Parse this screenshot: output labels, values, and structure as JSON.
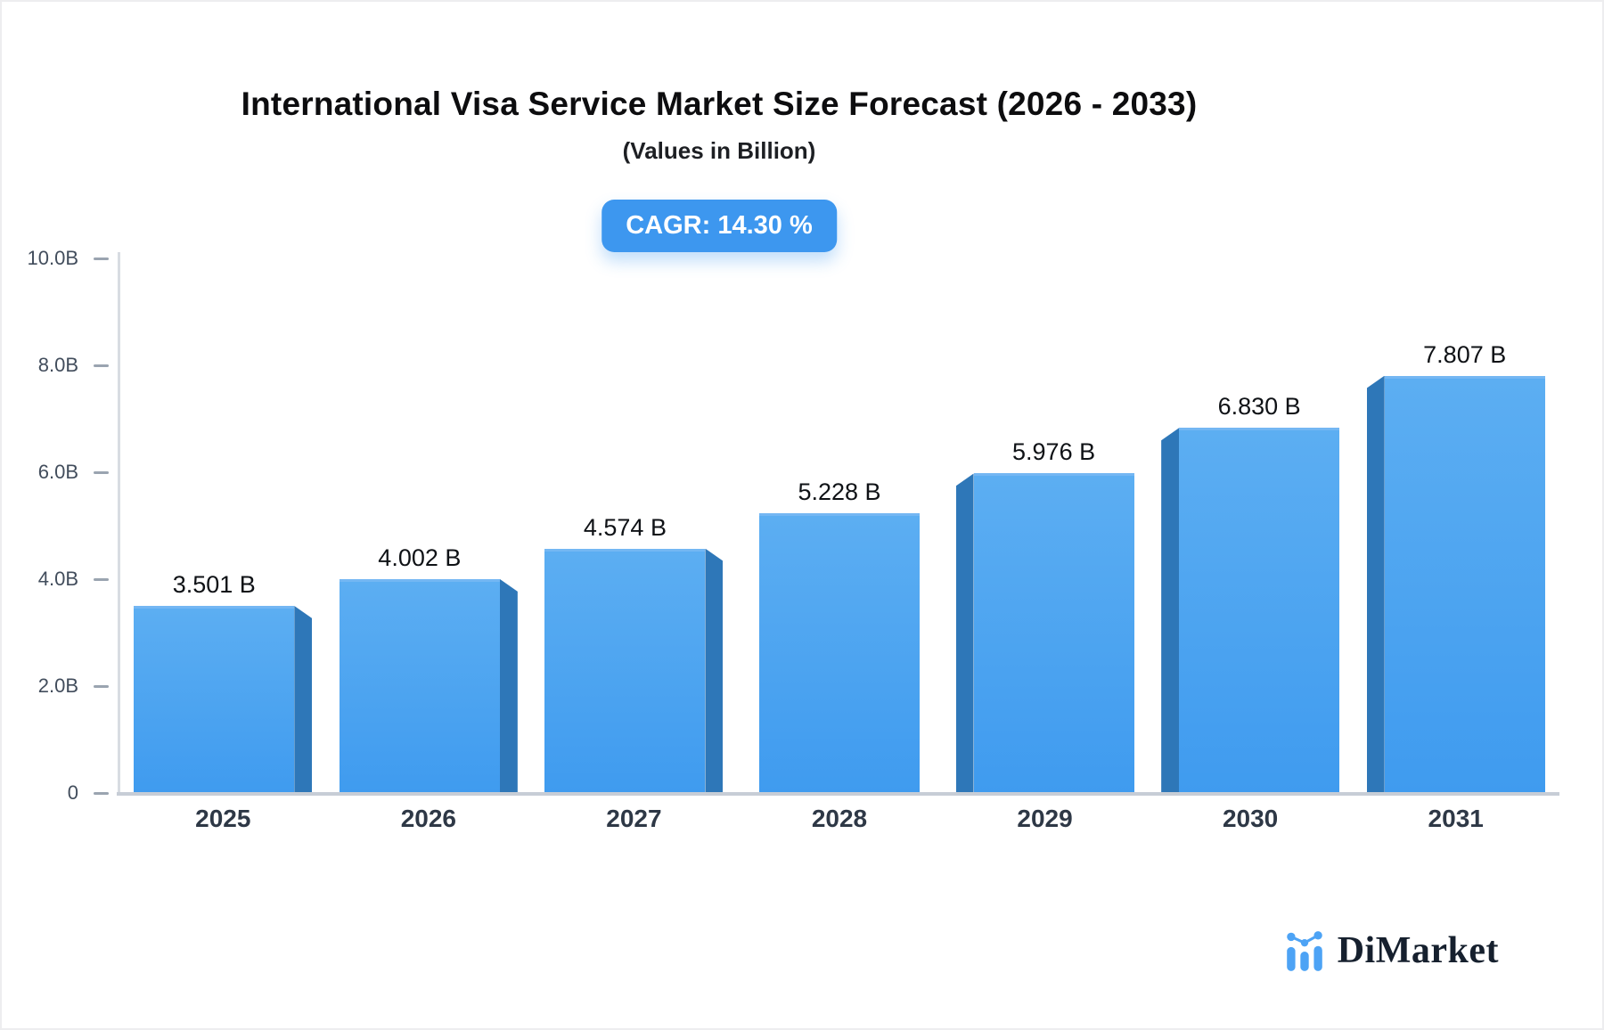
{
  "header": {
    "title": "International Visa Service Market Size Forecast (2026 - 2033)",
    "subtitle": "(Values in Billion)"
  },
  "badge": {
    "label": "CAGR: 14.30 %",
    "background_color": "#3d97ef",
    "text_color": "#ffffff"
  },
  "chart_data": {
    "type": "bar",
    "title": "International Visa Service Market Size Forecast (2026 - 2033)",
    "subtitle": "(Values in Billion)",
    "categories": [
      "2025",
      "2026",
      "2027",
      "2028",
      "2029",
      "2030",
      "2031"
    ],
    "values": [
      3.501,
      4.002,
      4.574,
      5.228,
      5.976,
      6.83,
      7.807
    ],
    "value_labels": [
      "3.501 B",
      "4.002 B",
      "4.574 B",
      "5.228 B",
      "5.976 B",
      "6.830 B",
      "7.807 B"
    ],
    "unit": "Billion",
    "annotation": "CAGR: 14.30 %",
    "ylim": [
      0,
      10
    ],
    "yticks": [
      0,
      2,
      4,
      6,
      8,
      10
    ],
    "ytick_labels": [
      "0",
      "2.0B",
      "4.0B",
      "6.0B",
      "8.0B",
      "10.0B"
    ],
    "xlabel": "",
    "ylabel": "",
    "grid": false,
    "legend": false,
    "bar_color_top": "#5caef2",
    "bar_color_bottom": "#3f9bef",
    "bar_side_color": "#2e77b8",
    "axis_line_color": "#d8dce2",
    "baseline_color": "#c7cdd6"
  },
  "logo": {
    "text": "DiMarket",
    "icon": "bar-chart-icon",
    "icon_color": "#4da3f5",
    "text_color": "#16202e"
  }
}
